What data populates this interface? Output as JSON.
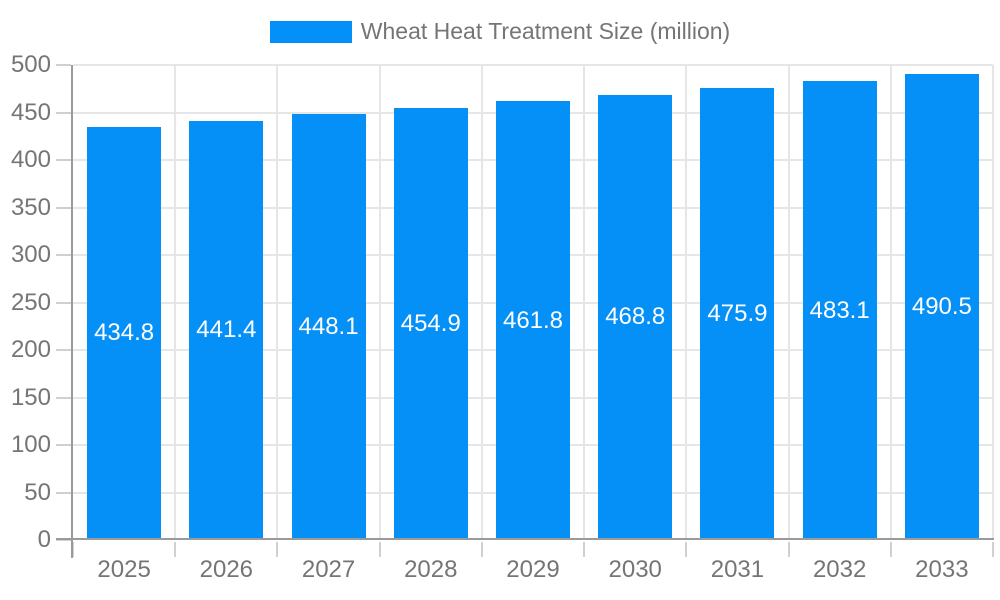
{
  "legend": {
    "label": "Wheat Heat Treatment Size (million)"
  },
  "chart_data": {
    "type": "bar",
    "title": "Wheat Heat Treatment Size (million)",
    "series_name": "Wheat Heat Treatment Size (million)",
    "categories": [
      "2025",
      "2026",
      "2027",
      "2028",
      "2029",
      "2030",
      "2031",
      "2032",
      "2033"
    ],
    "values": [
      434.8,
      441.4,
      448.1,
      454.9,
      461.8,
      468.8,
      475.9,
      483.1,
      490.5
    ],
    "value_labels": [
      "434.8",
      "441.4",
      "448.1",
      "454.9",
      "461.8",
      "468.8",
      "475.9",
      "483.1",
      "490.5"
    ],
    "xlabel": "",
    "ylabel": "",
    "ylim": [
      0,
      500
    ],
    "ytick_step": 50,
    "yticks": [
      0,
      50,
      100,
      150,
      200,
      250,
      300,
      350,
      400,
      450,
      500
    ],
    "grid": true,
    "legend_position": "top"
  },
  "colors": {
    "bar": "#0590F8",
    "value_label": "#FFFFFF",
    "axis_line": "#9A9A9A",
    "grid_line": "#E6E6E6",
    "tick": "#D0D0D0",
    "text": "#757575",
    "background": "#FFFFFF"
  }
}
